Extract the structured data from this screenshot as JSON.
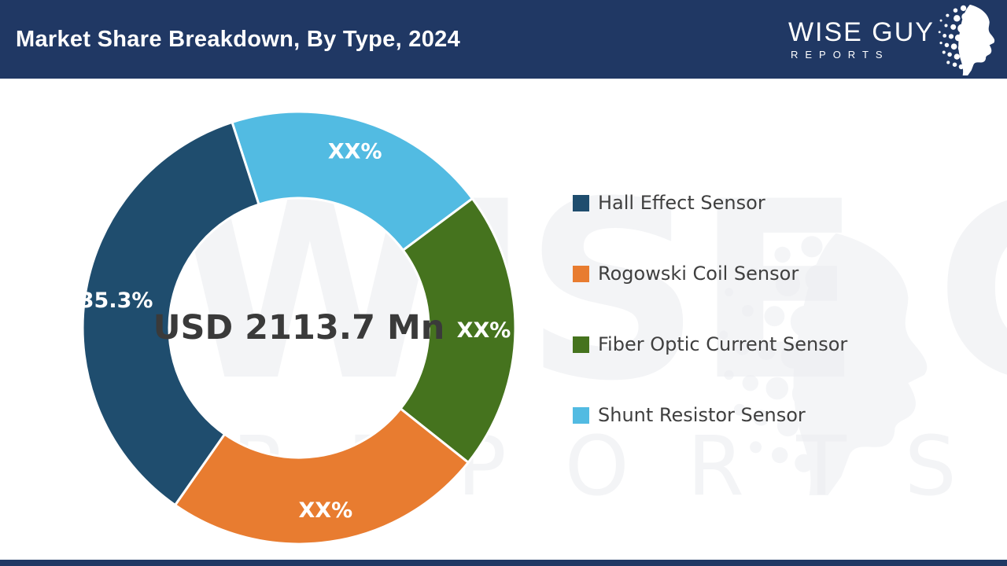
{
  "header": {
    "title": "Market Share Breakdown, By Type, 2024"
  },
  "logo": {
    "line1": "WISE GUY",
    "line2": "REPORTS"
  },
  "watermark": {
    "line1": "WISE GUY",
    "line2": "REPORTS"
  },
  "chart_data": {
    "type": "pie",
    "subtype": "donut",
    "title": "Market Share Breakdown, By Type, 2024",
    "center_label": "USD 2113.7 Mn",
    "start_angle_deg": -18,
    "draw_order": [
      3,
      2,
      1,
      0
    ],
    "legend_position": "right",
    "segments": [
      {
        "label": "Hall Effect Sensor",
        "value_pct": 35.3,
        "display_label": "35.3%",
        "color": "#1f4d6e"
      },
      {
        "label": "Rogowski Coil Sensor",
        "value_pct": 24.0,
        "display_label": "XX%",
        "color": "#e87c30"
      },
      {
        "label": "Fiber Optic Current Sensor",
        "value_pct": 20.9,
        "display_label": "XX%",
        "color": "#45731e"
      },
      {
        "label": "Shunt Resistor Sensor",
        "value_pct": 19.8,
        "display_label": "XX%",
        "color": "#52bbe2"
      }
    ]
  },
  "colors": {
    "header_bg": "#203864",
    "footer_bg": "#203864",
    "center_text": "#3a3a3a",
    "legend_text": "#3f3f3f",
    "slice_label_text": "#ffffff"
  }
}
